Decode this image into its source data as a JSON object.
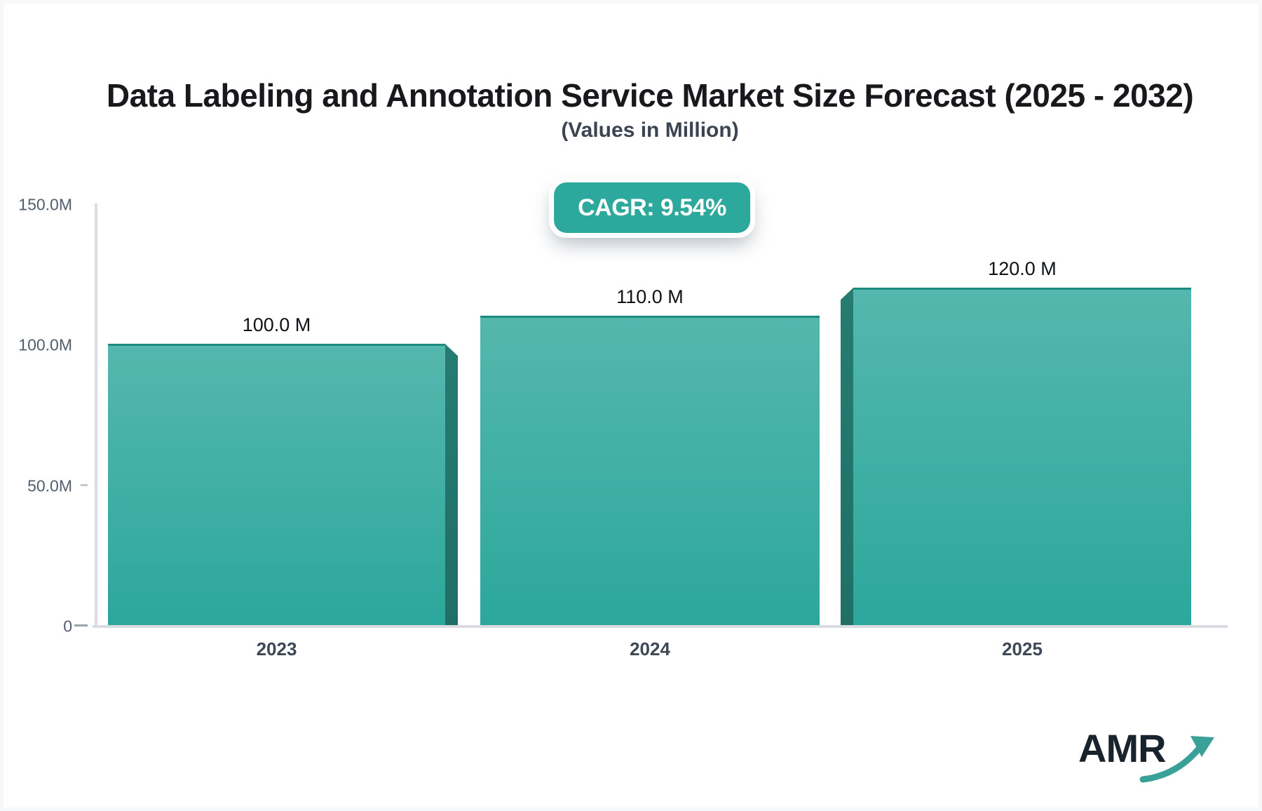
{
  "page": {
    "title": "Data Labeling and Annotation Service Market Size Forecast (2025 - 2032)",
    "subtitle": "(Values in Million)",
    "cagr_badge": "CAGR: 9.54%",
    "logo_text": "AMR"
  },
  "colors": {
    "accent_teal": "#2ca89d",
    "bar_gradient_top": "#55b7ae",
    "bar_gradient_bottom": "#2ca79b",
    "bar_top_border": "#1c8c82",
    "bar_bevel_dark": "#23786e",
    "axis_gray": "#d9dce2",
    "title_text": "#17191c",
    "axis_label_text": "#535e6c",
    "background": "#ffffff"
  },
  "chart_data": {
    "type": "bar",
    "title": "Data Labeling and Annotation Service Market Size Forecast (2025 - 2032)",
    "subtitle": "(Values in Million)",
    "annotation": "CAGR: 9.54%",
    "categories": [
      "2023",
      "2024",
      "2025"
    ],
    "values": [
      100.0,
      110.0,
      120.0
    ],
    "value_labels": [
      "100.0 M",
      "110.0 M",
      "120.0 M"
    ],
    "unit": "Million",
    "xlabel": "",
    "ylabel": "",
    "ylim": [
      0,
      150
    ],
    "grid": false,
    "legend_position": "none",
    "yticks": [
      {
        "label": "150.0M",
        "value": 150
      },
      {
        "label": "100.0M",
        "value": 100
      },
      {
        "label": "50.0M",
        "value": 50
      },
      {
        "label": "0",
        "value": 0
      }
    ],
    "bevels": [
      "right",
      "none",
      "left"
    ]
  }
}
